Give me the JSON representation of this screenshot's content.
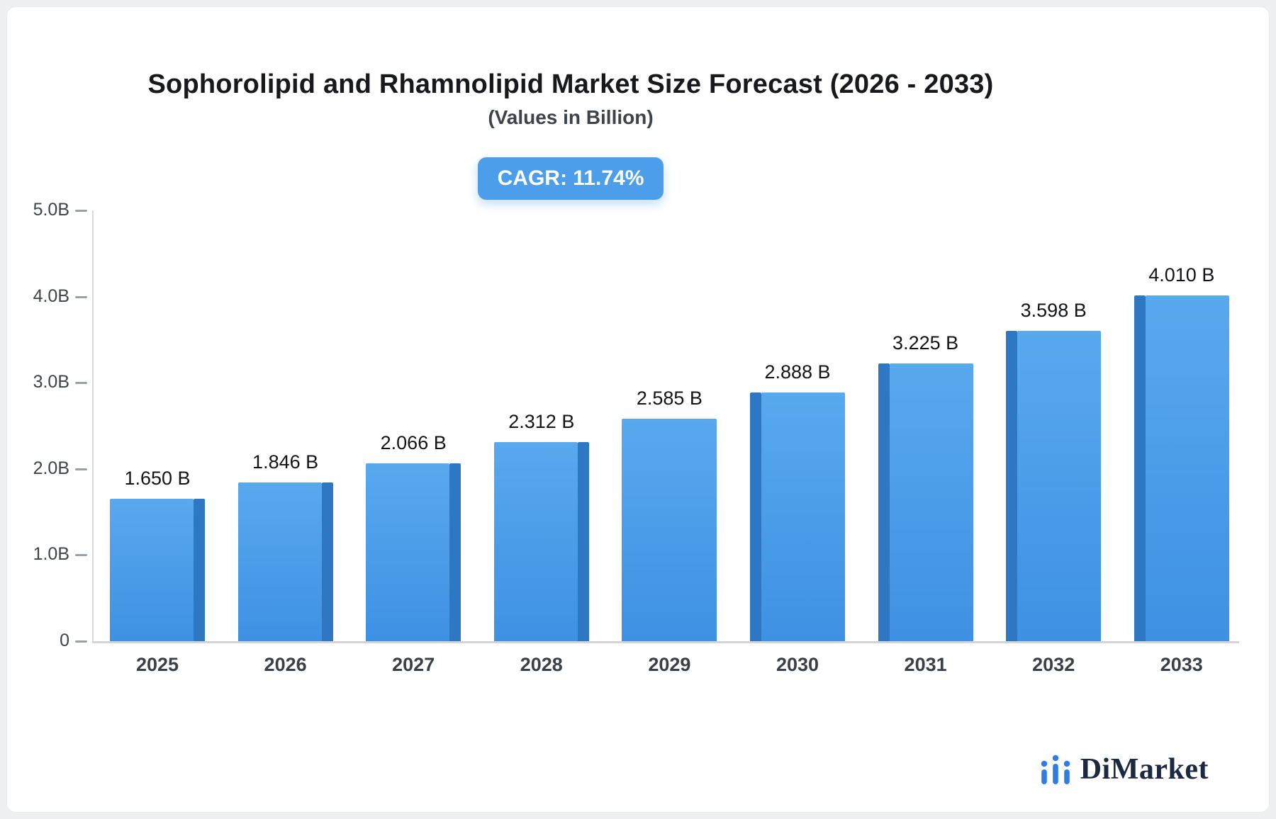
{
  "chart": {
    "title": "Sophorolipid and Rhamnolipid Market Size Forecast (2026 - 2033)",
    "subtitle": "(Values in Billion)",
    "cagr_label": "CAGR: 11.74%"
  },
  "chart_data": {
    "type": "bar",
    "title": "Sophorolipid and Rhamnolipid Market Size Forecast (2026 - 2033)",
    "subtitle": "(Values in Billion)",
    "annotation": "CAGR: 11.74%",
    "categories": [
      "2025",
      "2026",
      "2027",
      "2028",
      "2029",
      "2030",
      "2031",
      "2032",
      "2033"
    ],
    "values": [
      1.65,
      1.846,
      2.066,
      2.312,
      2.585,
      2.888,
      3.225,
      3.598,
      4.01
    ],
    "value_labels": [
      "1.650 B",
      "1.846 B",
      "2.066 B",
      "2.312 B",
      "2.585 B",
      "2.888 B",
      "3.225 B",
      "3.598 B",
      "4.010 B"
    ],
    "xlabel": "",
    "ylabel": "",
    "ylim": [
      0,
      5
    ],
    "yticks": [
      {
        "value": 5,
        "label": "5.0B"
      },
      {
        "value": 4,
        "label": "4.0B"
      },
      {
        "value": 3,
        "label": "3.0B"
      },
      {
        "value": 2,
        "label": "2.0B"
      },
      {
        "value": 1,
        "label": "1.0B"
      },
      {
        "value": 0,
        "label": "0"
      }
    ],
    "grid": false,
    "legend_position": "none",
    "colors": {
      "bar_top": "#58a9ee",
      "bar_bottom": "#3e91e3",
      "bar_side": "#2e77c3",
      "badge_bg": "#4d9eea",
      "badge_text": "#ffffff",
      "axis": "#d2d4d8"
    }
  },
  "logo": {
    "text": "DiMarket",
    "icon": "bar-chart-dots-icon",
    "icon_color": "#2f7de3"
  }
}
